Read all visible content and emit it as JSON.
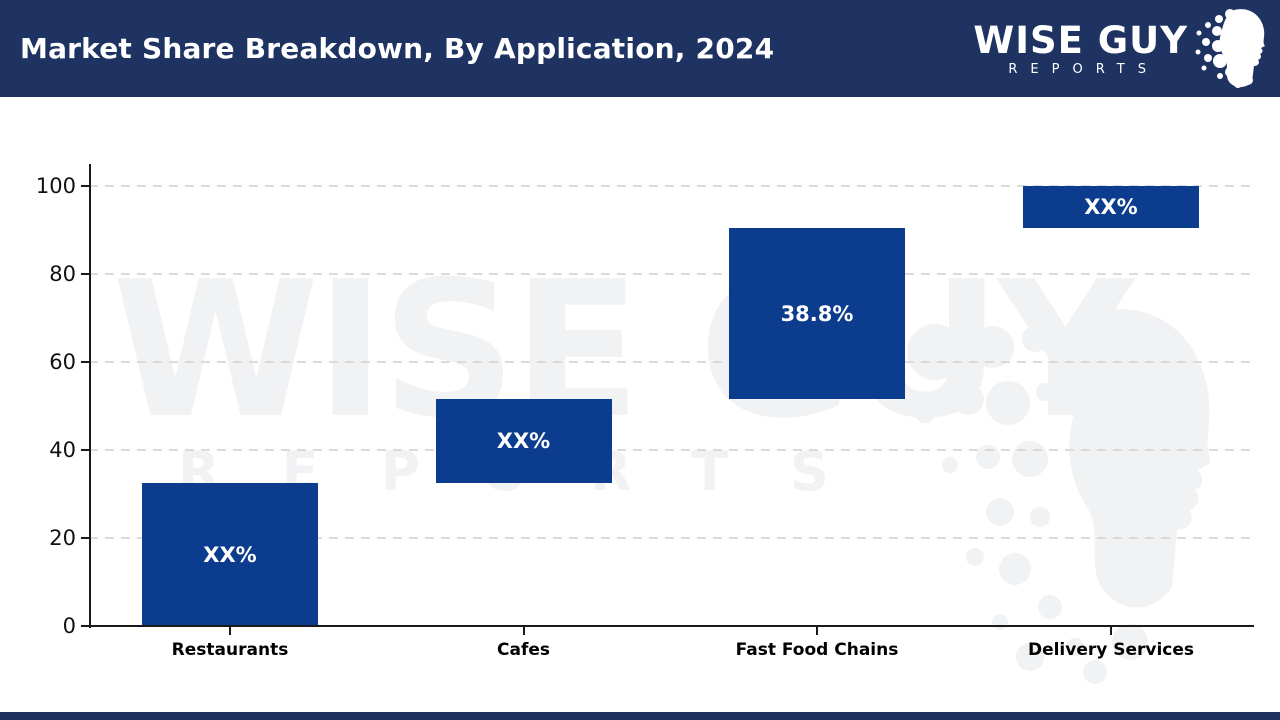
{
  "header": {
    "title": "Market Share Breakdown, By Application, 2024",
    "bg_color": "#1f3363",
    "logo": {
      "line1": "WISE GUY",
      "line2": "REPORTS"
    }
  },
  "watermark": {
    "line1": "WISE GUY",
    "line2": "REPORTS"
  },
  "chart_data": {
    "type": "bar",
    "subtype": "waterfall",
    "title": "Market Share Breakdown, By Application, 2024",
    "categories": [
      "Restaurants",
      "Cafes",
      "Fast Food Chains",
      "Delivery Services"
    ],
    "values": [
      32.4,
      19.2,
      38.8,
      9.6
    ],
    "starts": [
      0,
      32.4,
      51.6,
      90.4
    ],
    "ends": [
      32.4,
      51.6,
      90.4,
      100
    ],
    "bar_labels": [
      "XX%",
      "XX%",
      "38.8%",
      "XX%"
    ],
    "xlabel": "",
    "ylabel": "",
    "ylim": [
      0,
      104
    ],
    "yticks": [
      0,
      20,
      40,
      60,
      80,
      100
    ],
    "grid": "horizontal-dashed",
    "legend": "none",
    "bar_color": "#0c3c8d",
    "grid_color": "#dbdbdb",
    "axis_color": "#1a1a1a"
  },
  "footer": {
    "bg_color": "#1f3363"
  }
}
